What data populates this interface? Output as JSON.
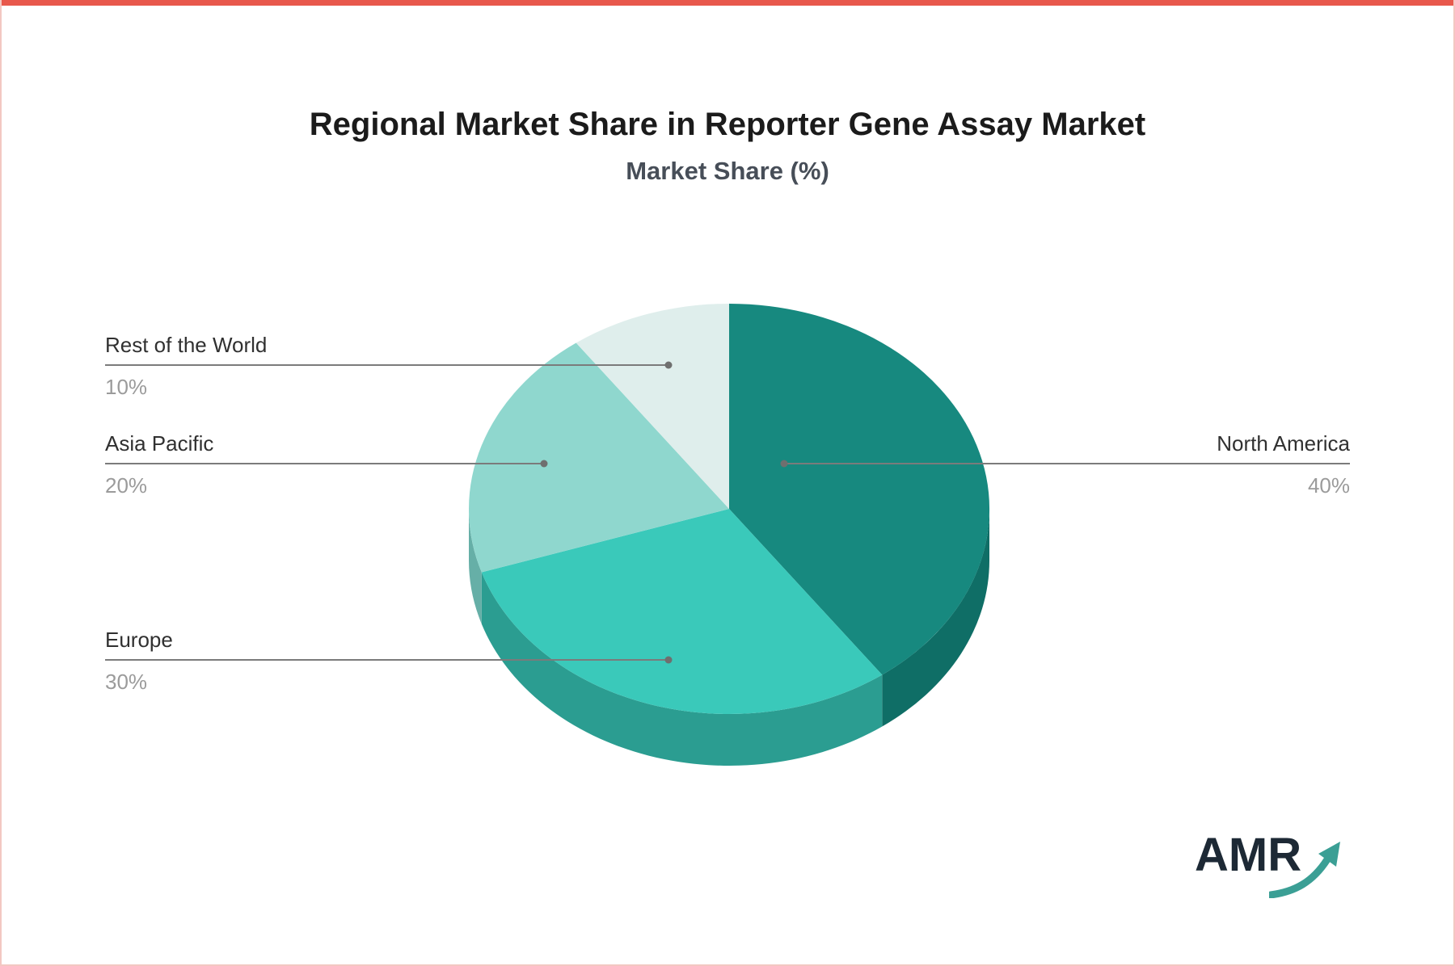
{
  "page": {
    "title": "Regional Market Share in Reporter Gene Assay Market",
    "subtitle": "Market Share (%)"
  },
  "chart_data": {
    "type": "pie",
    "style": "3d",
    "title": "Regional Market Share in Reporter Gene Assay Market",
    "subtitle": "Market Share (%)",
    "unit": "%",
    "start_angle_deg": 0,
    "direction": "clockwise",
    "legend_position": "none",
    "slices": [
      {
        "label": "North America",
        "value": 40,
        "display": "40%",
        "color": "#17897f",
        "side_color": "#0f6e66",
        "label_side": "right"
      },
      {
        "label": "Europe",
        "value": 30,
        "display": "30%",
        "color": "#3ac9ba",
        "side_color": "#2b9d91",
        "label_side": "left"
      },
      {
        "label": "Asia Pacific",
        "value": 20,
        "display": "20%",
        "color": "#8fd7ce",
        "side_color": "#66afa7",
        "label_side": "left"
      },
      {
        "label": "Rest of the World",
        "value": 10,
        "display": "10%",
        "color": "#dfeeec",
        "side_color": "#b9d8d4",
        "label_side": "left"
      }
    ]
  },
  "logo": {
    "text": "AMR",
    "text_color": "#1d2935",
    "arrow_color": "#3b9f95"
  },
  "colors": {
    "leader_line": "#7b7b7b",
    "dot": "#6f6f6f",
    "label_text": "#303030",
    "pct_text": "#9b9b9b",
    "top_bar": "#e8584c",
    "frame_border": "#f3c8c2",
    "background": "#ffffff"
  }
}
